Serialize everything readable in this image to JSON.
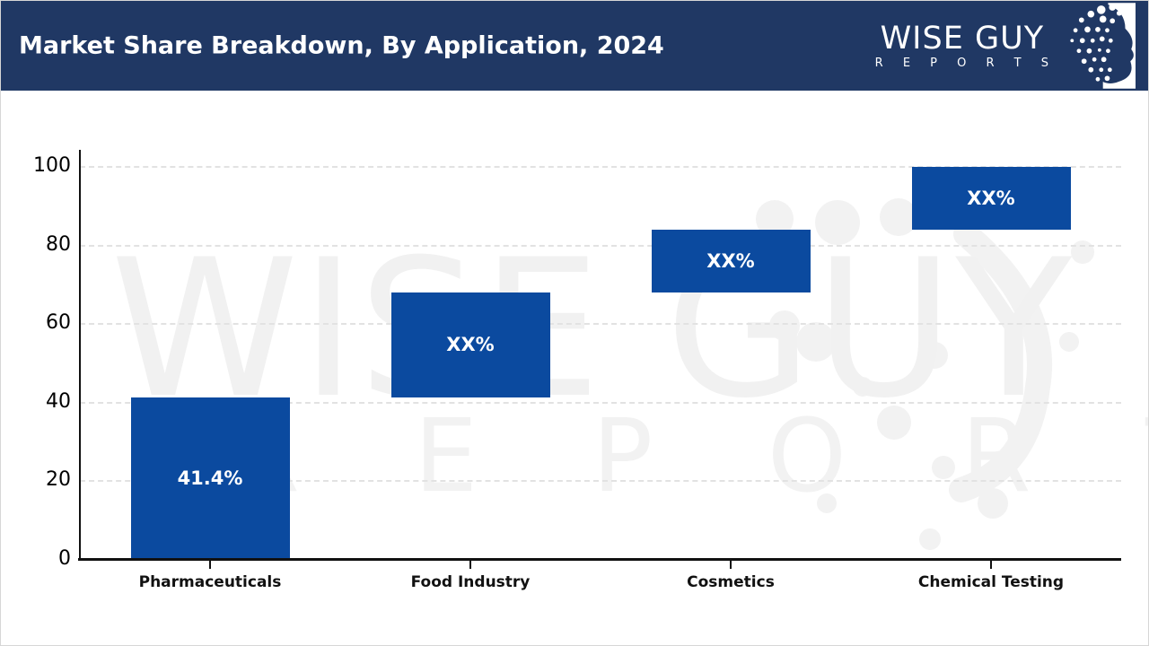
{
  "header": {
    "title": "Market Share Breakdown, By Application, 2024",
    "background_color": "#203864",
    "logo": {
      "line1": "WISE GUY",
      "line2": "R E P O R T S"
    }
  },
  "watermark": {
    "line1": "WISE GUY",
    "line2": "R E P O R T S"
  },
  "chart_data": {
    "type": "bar",
    "subtype": "waterfall",
    "title": "Market Share Breakdown, By Application, 2024",
    "xlabel": "",
    "ylabel": "",
    "ylim": [
      0,
      100
    ],
    "yticks": [
      0,
      20,
      40,
      60,
      80,
      100
    ],
    "grid": "horizontal dashed, behind bars",
    "legend": "none",
    "bar_color": "#0b4a9f",
    "bar_label_color": "#ffffff",
    "categories": [
      "Pharmaceuticals",
      "Food Industry",
      "Cosmetics",
      "Chemical Testing"
    ],
    "segments": [
      {
        "category": "Pharmaceuticals",
        "start": 0,
        "end": 41.4,
        "label": "41.4%"
      },
      {
        "category": "Food Industry",
        "start": 41.4,
        "end": 68,
        "label": "XX%"
      },
      {
        "category": "Cosmetics",
        "start": 68,
        "end": 84,
        "label": "XX%"
      },
      {
        "category": "Chemical Testing",
        "start": 84,
        "end": 100,
        "label": "XX%"
      }
    ]
  }
}
